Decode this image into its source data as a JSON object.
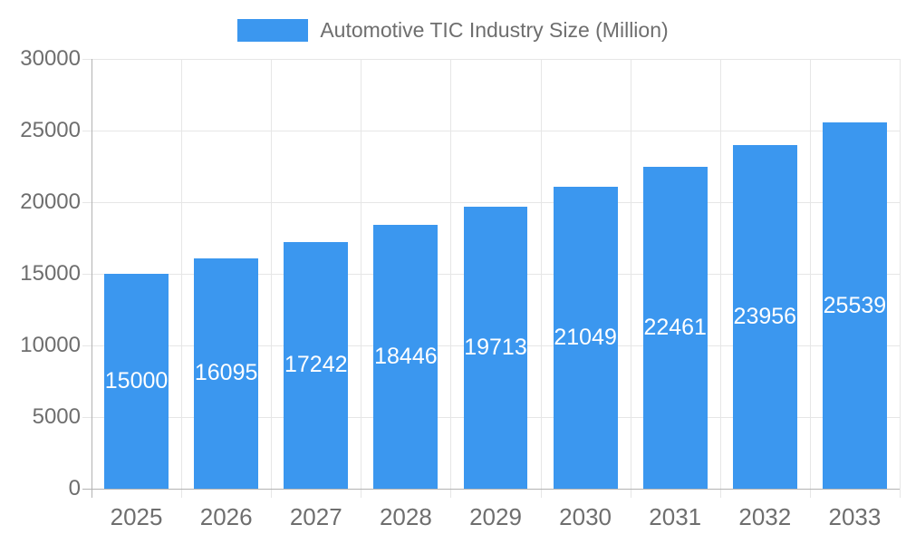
{
  "legend": {
    "label": "Automotive TIC Industry Size (Million)"
  },
  "chart_data": {
    "type": "bar",
    "title": "Automotive TIC Industry Size (Million)",
    "series_name": "Automotive TIC Industry Size (Million)",
    "categories": [
      "2025",
      "2026",
      "2027",
      "2028",
      "2029",
      "2030",
      "2031",
      "2032",
      "2033"
    ],
    "values": [
      15000,
      16095,
      17242,
      18446,
      19713,
      21049,
      22461,
      23956,
      25539
    ],
    "bar_labels": [
      "15000",
      "16095",
      "17242",
      "18446",
      "19713",
      "21049",
      "22461",
      "23956",
      "25539"
    ],
    "xlabel": "",
    "ylabel": "",
    "ylim": [
      0,
      30000
    ],
    "yticks": [
      0,
      5000,
      10000,
      15000,
      20000,
      25000,
      30000
    ],
    "grid": true,
    "legend_position": "top"
  },
  "colors": {
    "bar": "#3b97ef",
    "bar_label": "#ffffff",
    "grid": "#e6e6e6",
    "axis": "#b3b3b3",
    "text": "#6e6e6e",
    "background": "#ffffff"
  }
}
